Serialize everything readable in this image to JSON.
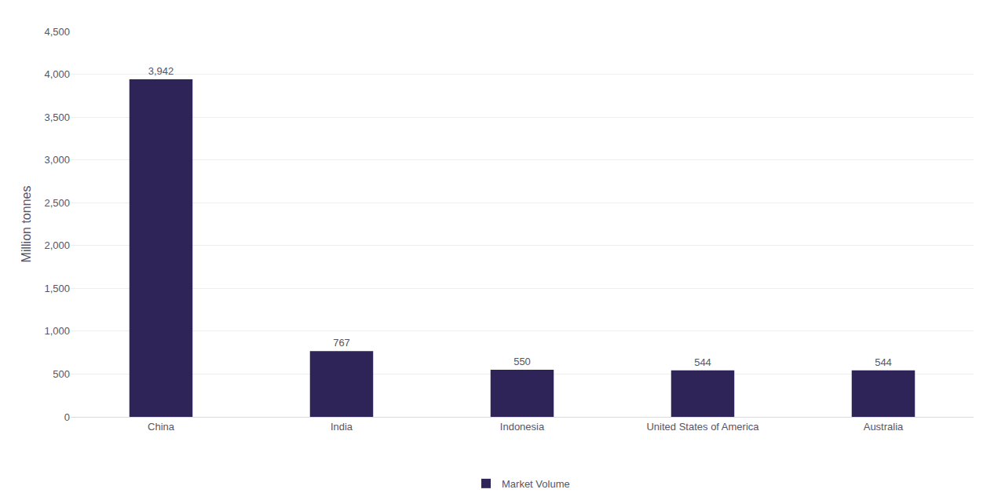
{
  "chart_data": {
    "type": "bar",
    "categories": [
      "China",
      "India",
      "Indonesia",
      "United States of America",
      "Australia"
    ],
    "series": [
      {
        "name": "Market Volume",
        "color": "#2e2457",
        "values": [
          3942,
          767,
          550,
          544,
          544
        ],
        "value_labels": [
          "3,942",
          "767",
          "550",
          "544",
          "544"
        ]
      }
    ],
    "ylabel": "Million tonnes",
    "ylim": [
      0,
      4500
    ],
    "yticks": [
      0,
      500,
      {
        "value": 1000,
        "label": "1,000"
      },
      {
        "value": 1500,
        "label": "1,500"
      },
      {
        "value": 2000,
        "label": "2,000"
      },
      {
        "value": 2500,
        "label": "2,500"
      },
      {
        "value": 3000,
        "label": "3,000"
      },
      {
        "value": 3500,
        "label": "3,500"
      },
      {
        "value": 4000,
        "label": "4,000"
      },
      {
        "value": 4500,
        "label": "4,500"
      }
    ],
    "grid": true,
    "legend": "bottom",
    "data_labels": true
  }
}
